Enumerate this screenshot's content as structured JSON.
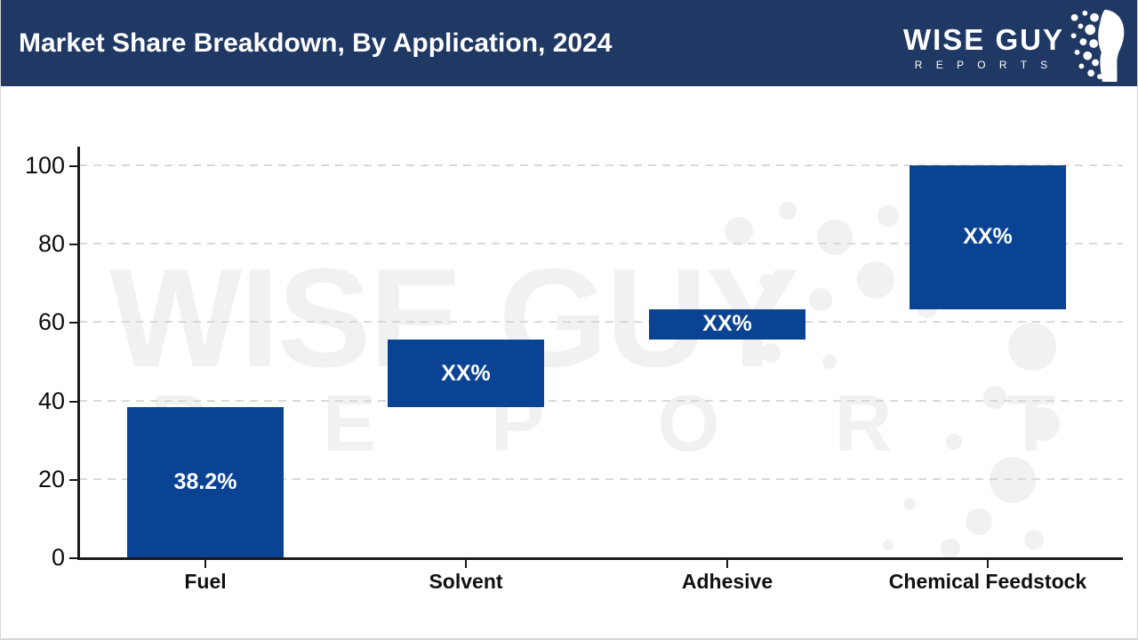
{
  "header": {
    "bg": "#1f3864"
  },
  "brand": {
    "name": "WISE GUY",
    "subname": "R E P O R T S"
  },
  "chart_data": {
    "type": "bar",
    "variant": "waterfall",
    "title": "Market Share Breakdown, By Application, 2024",
    "categories": [
      "Fuel",
      "Solvent",
      "Adhesive",
      "Chemical Feedstock"
    ],
    "segments": [
      {
        "category": "Fuel",
        "start": 0,
        "end": 38.2,
        "label": "38.2%"
      },
      {
        "category": "Solvent",
        "start": 38.2,
        "end": 55.5,
        "label": "XX%"
      },
      {
        "category": "Adhesive",
        "start": 55.5,
        "end": 63.3,
        "label": "XX%"
      },
      {
        "category": "Chemical Feedstock",
        "start": 63.3,
        "end": 100,
        "label": "XX%"
      }
    ],
    "yticks": [
      0,
      20,
      40,
      60,
      80,
      100
    ],
    "ylim": [
      0,
      104
    ],
    "grid": "horizontal-dashed",
    "legend": "none",
    "colors": {
      "bar": "#0a4394",
      "bar_label": "#ffffff",
      "grid": "#d9d9d9",
      "axis": "#1a1a1a",
      "header_bg": "#1f3864",
      "watermark": "#f1f1f2"
    }
  }
}
